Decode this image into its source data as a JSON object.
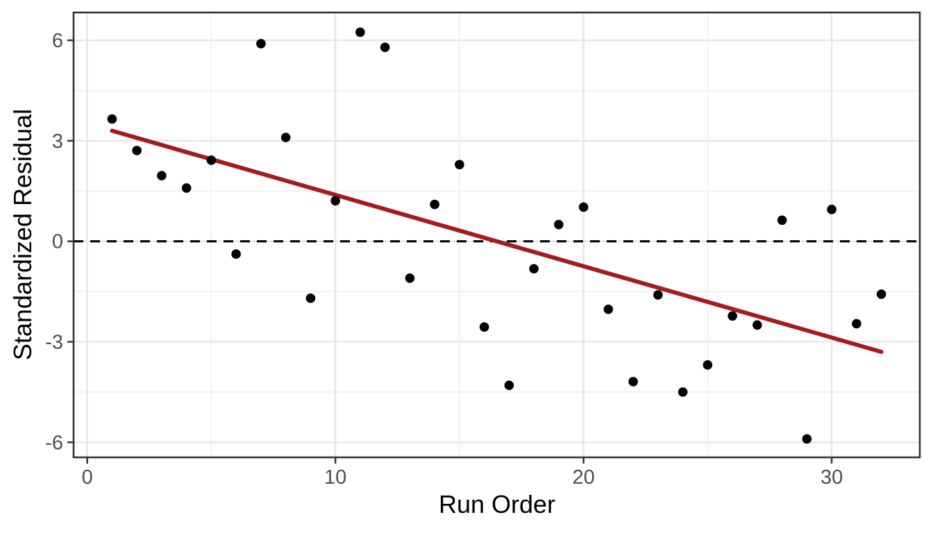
{
  "chart_data": {
    "type": "scatter",
    "title": "",
    "xlabel": "Run Order",
    "ylabel": "Standardized Residual",
    "grid": "on",
    "legend": "none",
    "series": [
      {
        "name": "standardized_residuals",
        "x": [
          1,
          2,
          3,
          4,
          5,
          6,
          7,
          8,
          9,
          10,
          11,
          12,
          13,
          14,
          15,
          16,
          17,
          18,
          19,
          20,
          21,
          22,
          23,
          24,
          25,
          26,
          27,
          28,
          29,
          30,
          31,
          32
        ],
        "y": [
          3.65,
          2.71,
          1.96,
          1.59,
          2.42,
          -0.38,
          5.9,
          3.1,
          -1.7,
          1.21,
          6.24,
          5.79,
          -1.1,
          1.1,
          2.29,
          -2.56,
          -4.3,
          -0.82,
          0.5,
          1.02,
          -2.03,
          -4.19,
          -1.6,
          -4.5,
          -3.69,
          -2.23,
          -2.5,
          0.63,
          -5.9,
          0.95,
          -2.46,
          -1.58
        ]
      }
    ],
    "trend_line": {
      "x1": 1,
      "y1": 3.3,
      "x2": 32,
      "y2": -3.3
    },
    "reference_line": {
      "y": 0,
      "style": "dashed"
    },
    "axes": {
      "x": {
        "ticks": [
          0,
          10,
          20,
          30
        ],
        "minor_ticks": [
          5,
          15,
          25
        ],
        "lim": [
          -0.55,
          33.55
        ]
      },
      "y": {
        "ticks": [
          -6,
          -3,
          0,
          3,
          6
        ],
        "minor_ticks": [
          -4.5,
          -1.5,
          1.5,
          4.5
        ],
        "lim": [
          -6.45,
          6.83
        ]
      }
    },
    "style": {
      "point_color": "#000000",
      "point_radius": 6.8,
      "trend_color": "#A31C20",
      "trend_width": 6,
      "reference_color": "#000000",
      "reference_width": 3.2,
      "reference_dash": "14 10",
      "grid_major_color": "#E6E6E6",
      "grid_minor_color": "#EDEDED",
      "panel_border_color": "#333333",
      "panel_bg": "#FFFFFF",
      "tick_mark_color": "#333333",
      "tick_label_color": "#4D4D4D",
      "axis_title_color": "#000000"
    }
  }
}
